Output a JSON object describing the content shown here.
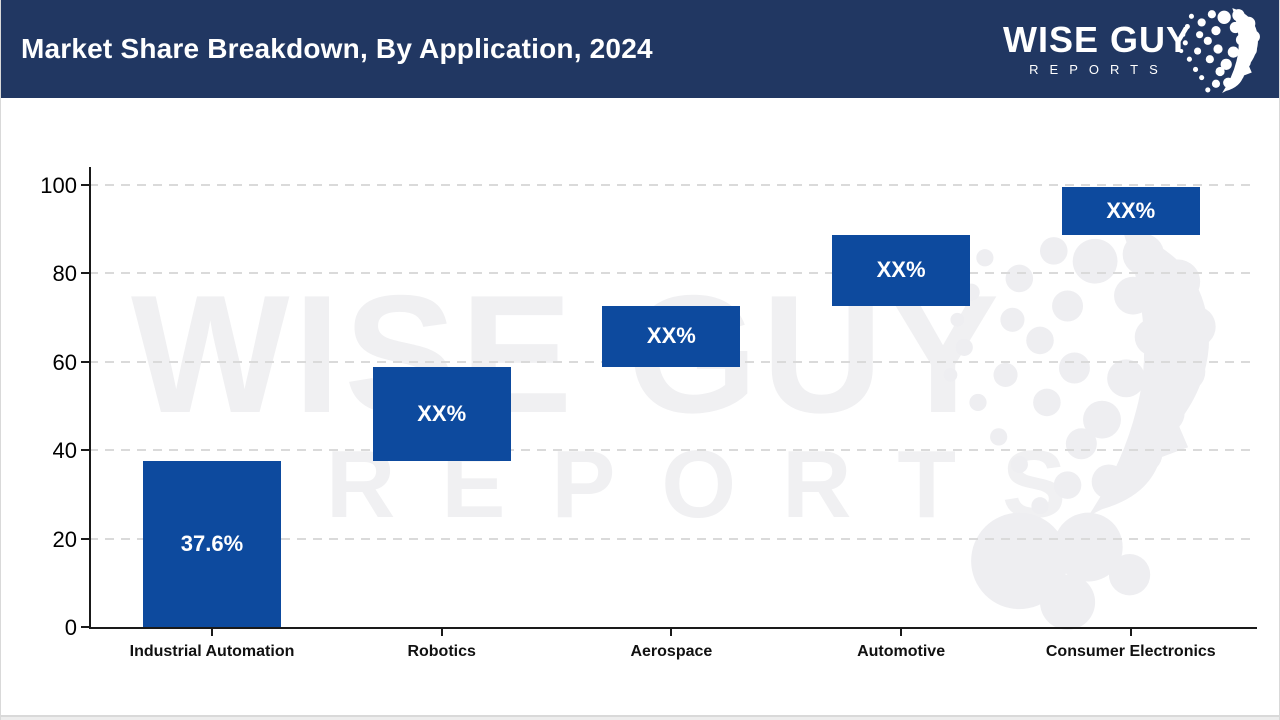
{
  "header": {
    "title": "Market Share Breakdown, By Application, 2024",
    "logo": {
      "line1": "WISE GUY",
      "line2": "REPORTS"
    }
  },
  "watermark": {
    "line1": "WISE GUY",
    "line2": "REPORTS"
  },
  "colors": {
    "header_bg": "#213762",
    "bar_blue": "#0d4a9e",
    "gridline": "#dadada",
    "axis": "#1a1a1a",
    "watermark_gray": "#f0f0f2",
    "bar_label": "#ffffff"
  },
  "chart_data": {
    "type": "bar",
    "variant": "waterfall",
    "title": "Market Share Breakdown, By Application, 2024",
    "categories": [
      "Industrial Automation",
      "Robotics",
      "Aerospace",
      "Automotive",
      "Consumer Electronics"
    ],
    "series": [
      {
        "name": "Market Share",
        "segments": [
          {
            "category": "Industrial Automation",
            "start": 0,
            "end": 37.6,
            "label": "37.6%"
          },
          {
            "category": "Robotics",
            "start": 37.6,
            "end": 58.8,
            "label": "XX%"
          },
          {
            "category": "Aerospace",
            "start": 58.8,
            "end": 72.7,
            "label": "XX%"
          },
          {
            "category": "Automotive",
            "start": 72.7,
            "end": 88.8,
            "label": "XX%"
          },
          {
            "category": "Consumer Electronics",
            "start": 88.8,
            "end": 99.6,
            "label": "XX%"
          }
        ]
      }
    ],
    "xlabel": "",
    "ylabel": "",
    "ylim": [
      0,
      100
    ],
    "yticks": [
      0,
      20,
      40,
      60,
      80,
      100
    ],
    "grid": "dashed-horizontal",
    "legend": "none"
  }
}
